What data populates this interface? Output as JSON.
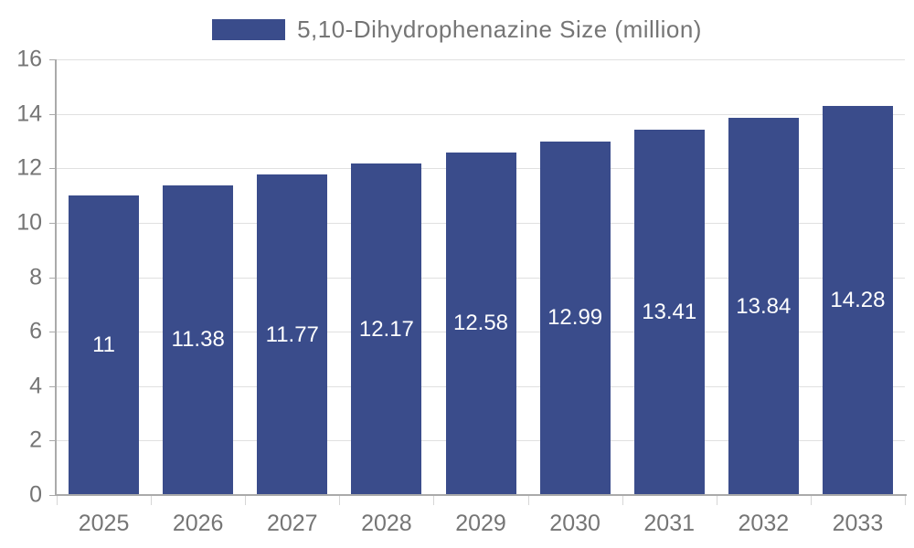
{
  "legend": {
    "label": "5,10-Dihydrophenazine Size (million)"
  },
  "colors": {
    "bar": "#3a4c8b",
    "grid": "#e0e0e0",
    "axis": "#aaaaaa",
    "x_tick": "#d6d6d6",
    "tick_text": "#757575",
    "bar_label": "#ffffff",
    "background": "#ffffff"
  },
  "chart_data": {
    "type": "bar",
    "title": "5,10-Dihydrophenazine Size (million)",
    "categories": [
      "2025",
      "2026",
      "2027",
      "2028",
      "2029",
      "2030",
      "2031",
      "2032",
      "2033"
    ],
    "values": [
      11,
      11.38,
      11.77,
      12.17,
      12.58,
      12.99,
      13.41,
      13.84,
      14.28
    ],
    "value_labels": [
      "11",
      "11.38",
      "11.77",
      "12.17",
      "12.58",
      "12.99",
      "13.41",
      "13.84",
      "14.28"
    ],
    "xlabel": "",
    "ylabel": "",
    "ylim": [
      0,
      16
    ],
    "ytick_step": 2,
    "ytick_labels": [
      "0",
      "2",
      "4",
      "6",
      "8",
      "10",
      "12",
      "14",
      "16"
    ],
    "grid": true,
    "legend_position": "top-center",
    "bar_label_position": "inside-center",
    "series_color": "#3a4c8b"
  }
}
